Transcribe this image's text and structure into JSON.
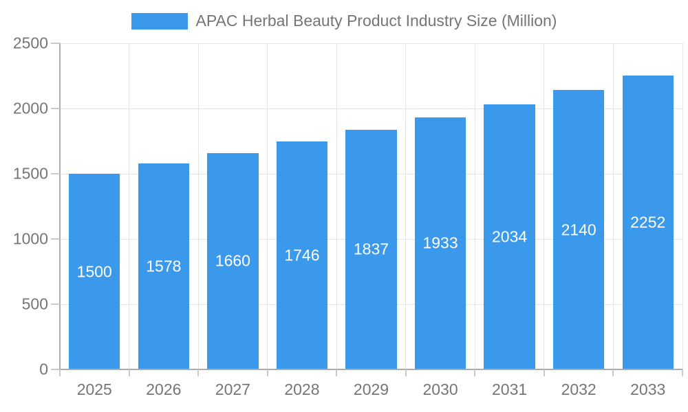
{
  "legend": {
    "label": "APAC Herbal Beauty Product Industry Size (Million)"
  },
  "chart_data": {
    "type": "bar",
    "title": "APAC Herbal Beauty Product Industry Size (Million)",
    "categories": [
      "2025",
      "2026",
      "2027",
      "2028",
      "2029",
      "2030",
      "2031",
      "2032",
      "2033"
    ],
    "values": [
      1500,
      1578,
      1660,
      1746,
      1837,
      1933,
      2034,
      2140,
      2252
    ],
    "value_labels": [
      "1500",
      "1578",
      "1660",
      "1746",
      "1837",
      "1933",
      "2034",
      "2140",
      "2252"
    ],
    "xlabel": "",
    "ylabel": "",
    "ylim": [
      0,
      2500
    ],
    "yticks": [
      0,
      500,
      1000,
      1500,
      2000,
      2500
    ],
    "grid": true,
    "legend_position": "top",
    "value_label_position": "center-of-bar",
    "colors": {
      "bar": "#3B99EC",
      "grid": "#E3E3E3",
      "axis": "#ABABAB",
      "tick": "#C9C9C9",
      "text": "#757575",
      "value_label": "#FFFFFF"
    }
  }
}
